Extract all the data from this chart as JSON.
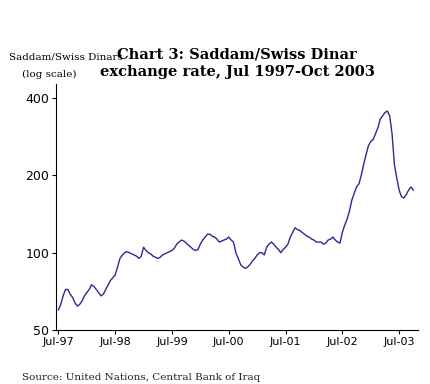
{
  "title": "Chart 3: Saddam/Swiss Dinar\nexchange rate, Jul 1997-Oct 2003",
  "ylabel_line1": "Saddam/Swiss Dinars",
  "ylabel_line2": "    (log scale)",
  "source": "Source: United Nations, Central Bank of Iraq",
  "line_color": "#2B2B8B",
  "background_color": "#ffffff",
  "yticks": [
    50,
    100,
    200,
    400
  ],
  "ylim": [
    50,
    450
  ],
  "xtick_labels": [
    "Jul-97",
    "Jul-98",
    "Jul-99",
    "Jul-00",
    "Jul-01",
    "Jul-02",
    "Jul-03"
  ],
  "data": {
    "months": [
      0,
      0.5,
      1,
      1.5,
      2,
      2.5,
      3,
      3.5,
      4,
      4.5,
      5,
      5.5,
      6,
      6.5,
      7,
      7.5,
      8,
      8.5,
      9,
      9.5,
      10,
      10.5,
      11,
      11.5,
      12,
      12.5,
      13,
      13.5,
      14,
      14.5,
      15,
      15.5,
      16,
      16.5,
      17,
      17.5,
      18,
      18.5,
      19,
      19.5,
      20,
      20.5,
      21,
      21.5,
      22,
      22.5,
      23,
      23.5,
      24,
      24.5,
      25,
      25.5,
      26,
      26.5,
      27,
      27.5,
      28,
      28.5,
      29,
      29.5,
      30,
      30.5,
      31,
      31.5,
      32,
      32.5,
      33,
      33.5,
      34,
      34.5,
      35,
      35.5,
      36,
      36.5,
      37,
      37.5,
      38,
      38.5,
      39,
      39.5,
      40,
      40.5,
      41,
      41.5,
      42,
      42.5,
      43,
      43.5,
      44,
      44.5,
      45,
      45.5,
      46,
      46.5,
      47,
      47.5,
      48,
      48.5,
      49,
      49.5,
      50,
      50.5,
      51,
      51.5,
      52,
      52.5,
      53,
      53.5,
      54,
      54.5,
      55,
      55.5,
      56,
      56.5,
      57,
      57.5,
      58,
      58.5,
      59,
      59.5,
      60,
      60.5,
      61,
      61.5,
      62,
      62.5,
      63,
      63.5,
      64,
      64.5,
      65,
      65.5,
      66,
      66.5,
      67,
      67.5,
      68,
      68.5,
      69,
      69.5,
      70,
      70.5,
      71,
      71.5,
      72,
      72.5,
      73,
      73.5,
      74,
      74.5,
      75
    ],
    "values": [
      60,
      63,
      68,
      72,
      72,
      69,
      67,
      64,
      62,
      63,
      65,
      68,
      70,
      72,
      75,
      74,
      72,
      70,
      68,
      69,
      72,
      75,
      78,
      80,
      82,
      88,
      95,
      98,
      100,
      101,
      100,
      99,
      98,
      97,
      95,
      97,
      105,
      102,
      100,
      99,
      97,
      96,
      95,
      96,
      98,
      99,
      100,
      101,
      102,
      104,
      108,
      110,
      112,
      111,
      109,
      107,
      105,
      103,
      102,
      103,
      108,
      112,
      115,
      118,
      118,
      116,
      115,
      113,
      110,
      111,
      112,
      113,
      115,
      112,
      110,
      100,
      95,
      90,
      88,
      87,
      88,
      90,
      93,
      95,
      98,
      100,
      100,
      98,
      105,
      108,
      110,
      108,
      105,
      103,
      100,
      103,
      105,
      108,
      115,
      120,
      125,
      123,
      122,
      120,
      118,
      116,
      115,
      113,
      112,
      110,
      110,
      110,
      108,
      109,
      112,
      113,
      115,
      112,
      110,
      109,
      120,
      128,
      135,
      145,
      160,
      170,
      180,
      185,
      200,
      220,
      240,
      260,
      270,
      275,
      290,
      305,
      330,
      340,
      350,
      355,
      340,
      290,
      220,
      195,
      175,
      165,
      163,
      168,
      175,
      180,
      175
    ]
  }
}
